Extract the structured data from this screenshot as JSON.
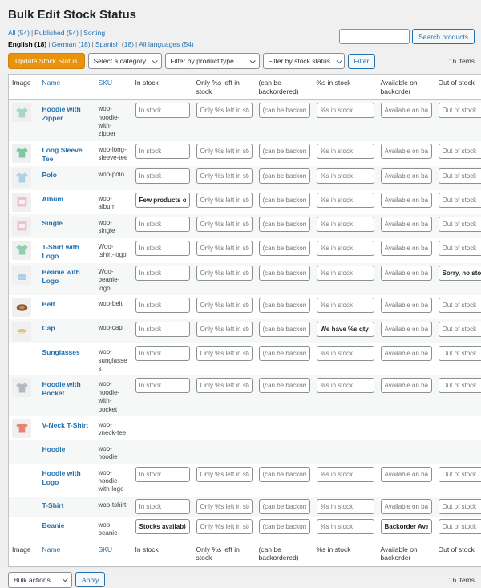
{
  "page": {
    "title": "Bulk Edit Stock Status"
  },
  "views": [
    {
      "label": "All",
      "count": "(54)"
    },
    {
      "label": "Published",
      "count": "(54)"
    },
    {
      "label": "Sorting",
      "count": ""
    }
  ],
  "languages": [
    {
      "label": "English",
      "count": "(18)",
      "current": true
    },
    {
      "label": "German",
      "count": "(18)",
      "current": false
    },
    {
      "label": "Spanish",
      "count": "(18)",
      "current": false
    },
    {
      "label": "All languages",
      "count": "(54)",
      "current": false
    }
  ],
  "search": {
    "input_value": "",
    "button_label": "Search products"
  },
  "toolbar": {
    "update_button": "Update Stock Status",
    "category_filter": "Select a category",
    "type_filter": "Filter by product type",
    "status_filter": "Filter by stock status",
    "filter_button": "Filter",
    "items_count": "16 items"
  },
  "table": {
    "columns": {
      "image": "Image",
      "name": "Name",
      "sku": "SKU",
      "in_stock": "In stock",
      "only_left": "Only %s left in stock",
      "backordered": "(can be backordered)",
      "percent_stock": "%s in stock",
      "avail_backorder": "Available on backorder",
      "out_of_stock": "Out of stock"
    },
    "rows": [
      {
        "name": "Hoodie with Zipper",
        "sku": "woo-hoodie-with-zipper",
        "image": {
          "shape": "tee",
          "color": "#a8d8c4"
        },
        "has_inputs": true,
        "values": {}
      },
      {
        "name": "Long Sleeve Tee",
        "sku": "woo-long-sleeve-tee",
        "image": {
          "shape": "tee",
          "color": "#7fc99e"
        },
        "has_inputs": true,
        "values": {}
      },
      {
        "name": "Polo",
        "sku": "woo-polo",
        "image": {
          "shape": "tee",
          "color": "#a9d3e5"
        },
        "has_inputs": true,
        "values": {}
      },
      {
        "name": "Album",
        "sku": "woo-album",
        "image": {
          "shape": "album",
          "color": "#e9c4ca"
        },
        "has_inputs": true,
        "values": {
          "in_stock": "Few products only available"
        }
      },
      {
        "name": "Single",
        "sku": "woo-single",
        "image": {
          "shape": "album",
          "color": "#e9c4ca"
        },
        "has_inputs": true,
        "values": {}
      },
      {
        "name": "T-Shirt with Logo",
        "sku": "Woo-tshirt-logo",
        "image": {
          "shape": "tee",
          "color": "#8ecfae"
        },
        "has_inputs": true,
        "values": {}
      },
      {
        "name": "Beanie with Logo",
        "sku": "Woo-beanie-logo",
        "image": {
          "shape": "beanie",
          "color": "#a9cfe2"
        },
        "has_inputs": true,
        "values": {
          "out_of_stock": "Sorry, no stocks!"
        }
      },
      {
        "name": "Belt",
        "sku": "woo-belt",
        "image": {
          "shape": "belt",
          "color": "#8a5a34"
        },
        "has_inputs": true,
        "values": {}
      },
      {
        "name": "Cap",
        "sku": "woo-cap",
        "image": {
          "shape": "cap",
          "color": "#dfbf82"
        },
        "has_inputs": true,
        "values": {
          "percent_stock": "We have %s qty"
        }
      },
      {
        "name": "Sunglasses",
        "sku": "woo-sunglasses",
        "image": null,
        "has_inputs": true,
        "values": {}
      },
      {
        "name": "Hoodie with Pocket",
        "sku": "woo-hoodie-with-pocket",
        "image": {
          "shape": "tee",
          "color": "#b3b9be"
        },
        "has_inputs": true,
        "values": {}
      },
      {
        "name": "V-Neck T-Shirt",
        "sku": "woo-vneck-tee",
        "image": {
          "shape": "tee",
          "color": "#e9836e"
        },
        "has_inputs": false,
        "values": {}
      },
      {
        "name": "Hoodie",
        "sku": "woo-hoodie",
        "image": null,
        "has_inputs": false,
        "values": {}
      },
      {
        "name": "Hoodie with Logo",
        "sku": "woo-hoodie-with-logo",
        "image": null,
        "has_inputs": true,
        "values": {}
      },
      {
        "name": "T-Shirt",
        "sku": "woo-tshirt",
        "image": null,
        "has_inputs": true,
        "values": {}
      },
      {
        "name": "Beanie",
        "sku": "woo-beanie",
        "image": null,
        "has_inputs": true,
        "values": {
          "in_stock": "Stocks available",
          "avail_backorder": "Backorder Available"
        }
      }
    ]
  },
  "footer": {
    "bulk_actions_label": "Bulk actions",
    "apply_button": "Apply",
    "items_count": "16 items"
  },
  "colors": {
    "accent_blue": "#2271b1",
    "button_orange": "#e8930c",
    "page_background": "#f0f0f1",
    "stripe_row": "#f6f7f7"
  }
}
